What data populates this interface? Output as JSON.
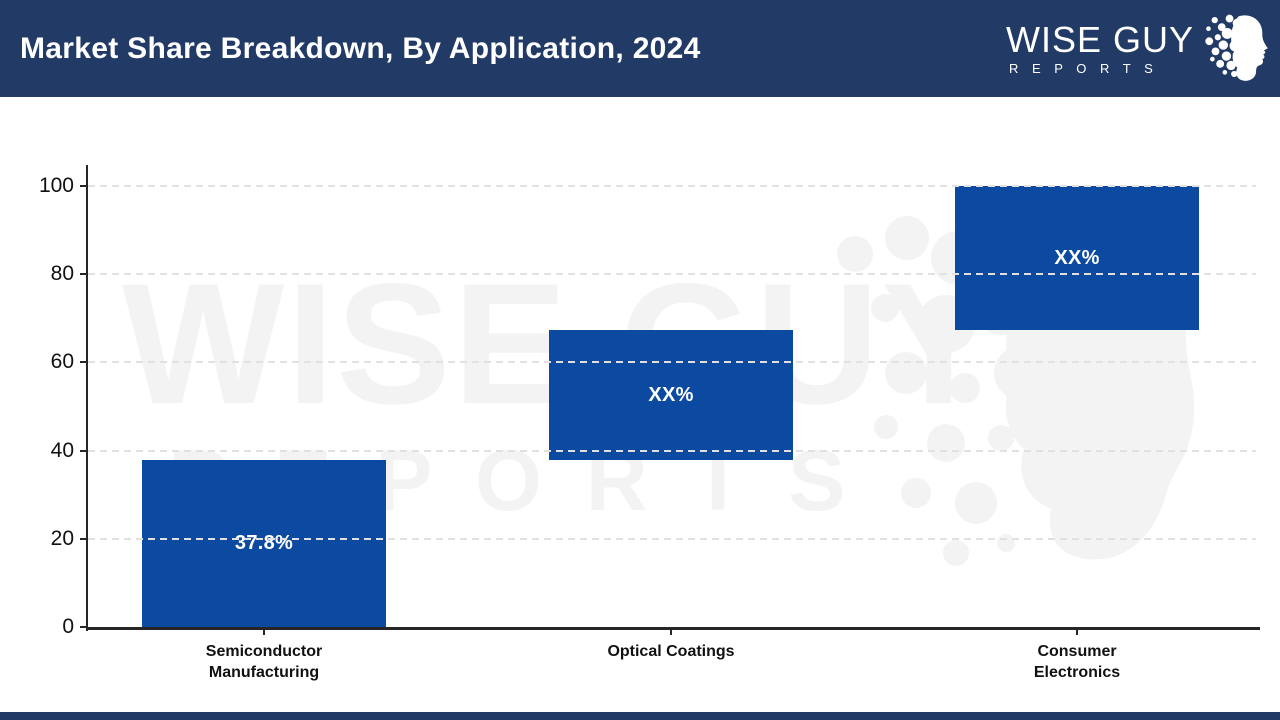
{
  "header": {
    "title": "Market Share Breakdown, By Application, 2024",
    "logo": {
      "line1": "WISE GUY",
      "line2": "R E P O R T S"
    }
  },
  "watermark": {
    "line1": "WISE GUY",
    "line2": "R E P O R T S"
  },
  "colors": {
    "header_bg": "#213a66",
    "bar": "#0c4aa1",
    "grid": "#e1e1e1",
    "axis": "#262626",
    "tick_label": "#111111",
    "bar_label": "#ffffff",
    "watermark": "#f3f3f3"
  },
  "chart_data": {
    "type": "bar",
    "subtype": "floating-segment waterfall of market share",
    "title": "Market Share Breakdown, By Application, 2024",
    "categories": [
      "Semiconductor Manufacturing",
      "Optical Coatings",
      "Consumer Electronics"
    ],
    "category_label_lines": [
      [
        "Semiconductor",
        "Manufacturing"
      ],
      [
        "Optical Coatings"
      ],
      [
        "Consumer",
        "Electronics"
      ]
    ],
    "bars": [
      {
        "category": "Semiconductor Manufacturing",
        "start": 0,
        "end": 37.8,
        "label": "37.8%"
      },
      {
        "category": "Optical Coatings",
        "start": 37.8,
        "end": 67.3,
        "label": "XX%"
      },
      {
        "category": "Consumer Electronics",
        "start": 67.3,
        "end": 100,
        "label": "XX%"
      }
    ],
    "yticks": [
      0,
      20,
      40,
      60,
      80,
      100
    ],
    "ylim": [
      0,
      104.8
    ],
    "xlabel": "",
    "ylabel": "",
    "grid": "horizontal dashed, drawn over bars",
    "legend": false
  }
}
